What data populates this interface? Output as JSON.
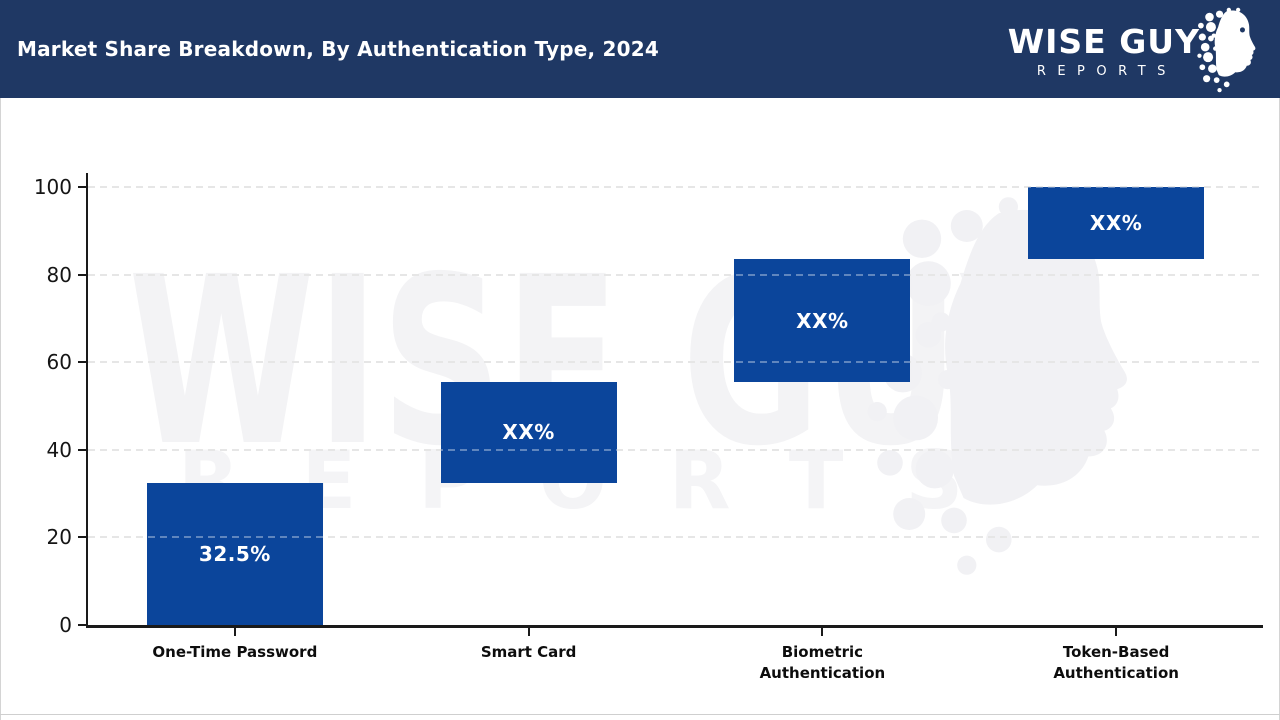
{
  "header": {
    "title": "Market Share Breakdown, By Authentication Type, 2024",
    "bg_color": "#1f3864",
    "logo": {
      "name_line": "WISE GUY",
      "sub_line": "REPORTS"
    }
  },
  "watermark": {
    "big_text": "WISE GUY",
    "sub_text": "REPORTS"
  },
  "chart_data": {
    "type": "bar",
    "subtype": "waterfall-floating-bars",
    "title": "Market Share Breakdown, By Authentication Type, 2024",
    "categories": [
      "One-Time Password",
      "Smart Card",
      "Biometric\nAuthentication",
      "Token-Based\nAuthentication"
    ],
    "segments": [
      {
        "category": "One-Time Password",
        "start": 0,
        "end": 32.5,
        "label": "32.5%"
      },
      {
        "category": "Smart Card",
        "start": 32.5,
        "end": 55.5,
        "label": "XX%"
      },
      {
        "category": "Biometric Authentication",
        "start": 55.5,
        "end": 83.5,
        "label": "XX%"
      },
      {
        "category": "Token-Based Authentication",
        "start": 83.5,
        "end": 100,
        "label": "XX%"
      }
    ],
    "ylim": [
      0,
      100
    ],
    "yticks": [
      0,
      20,
      40,
      60,
      80,
      100
    ],
    "grid": "horizontal-dashed",
    "legend": "none",
    "bar_color": "#0b459b",
    "bar_label_color": "#ffffff",
    "axis_color": "#1a1a1a",
    "gridline_color": "#d9d9d9"
  }
}
